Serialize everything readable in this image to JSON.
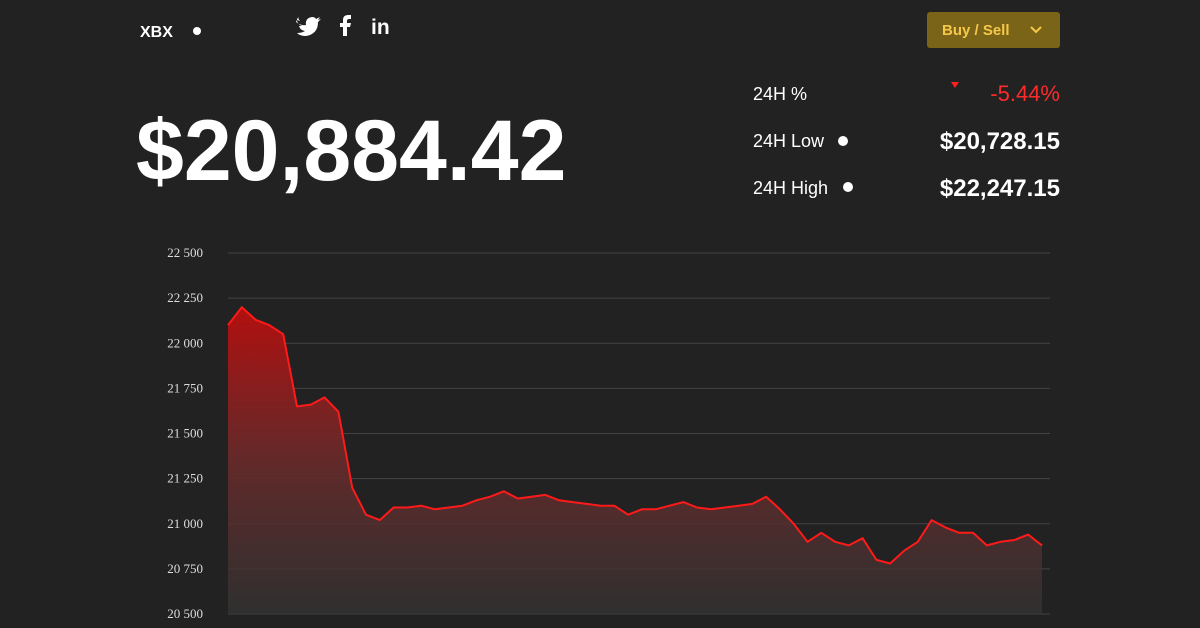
{
  "header": {
    "symbol": "XBX",
    "button": "Buy / Sell",
    "price": "$20,884.42",
    "stats": [
      {
        "label": "24H %",
        "value": "-5.44%"
      },
      {
        "label": "24H Low",
        "value": "$20,728.15"
      },
      {
        "label": "24H High",
        "value": "$22,247.15"
      }
    ]
  },
  "chart_data": {
    "type": "area",
    "color": "#ff1a1a",
    "ylim": [
      20500,
      22500
    ],
    "yticks": [
      {
        "value": 20500,
        "label": "20 500"
      },
      {
        "value": 20750,
        "label": "20 750"
      },
      {
        "value": 21000,
        "label": "21 000"
      },
      {
        "value": 21250,
        "label": "21 250"
      },
      {
        "value": 21500,
        "label": "21 500"
      },
      {
        "value": 21750,
        "label": "21 750"
      },
      {
        "value": 22000,
        "label": "22 000"
      },
      {
        "value": 22250,
        "label": "22 250"
      },
      {
        "value": 22500,
        "label": "22 500"
      }
    ],
    "grid": true,
    "values": [
      22100,
      22200,
      22130,
      22100,
      22050,
      21650,
      21660,
      21700,
      21620,
      21200,
      21050,
      21020,
      21090,
      21090,
      21100,
      21080,
      21090,
      21100,
      21130,
      21150,
      21180,
      21140,
      21150,
      21160,
      21130,
      21120,
      21110,
      21100,
      21100,
      21050,
      21080,
      21080,
      21100,
      21120,
      21090,
      21080,
      21090,
      21100,
      21110,
      21150,
      21080,
      21000,
      20900,
      20950,
      20900,
      20880,
      20920,
      20800,
      20780,
      20850,
      20900,
      21020,
      20980,
      20950,
      20950,
      20880,
      20900,
      20910,
      20940,
      20880
    ]
  }
}
